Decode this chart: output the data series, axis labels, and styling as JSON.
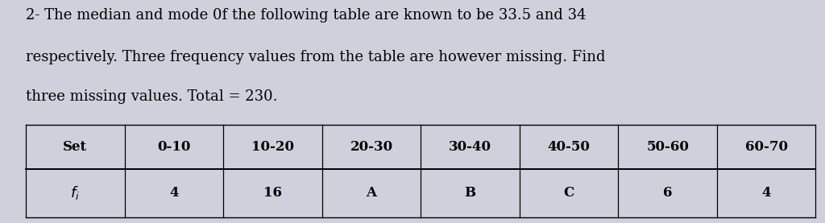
{
  "background_color": "#d0d0dc",
  "text_lines": [
    "2- The median and mode 0f the following table are known to be 33.5 and 34",
    "respectively. Three frequency values from the table are however missing. Find",
    "three missing values. Total = 230."
  ],
  "table_headers": [
    "Set",
    "0-10",
    "10-20",
    "20-30",
    "30-40",
    "40-50",
    "50-60",
    "60-70"
  ],
  "table_row_label": "$f_i$",
  "table_values": [
    "4",
    "16",
    "A",
    "B",
    "C",
    "6",
    "4"
  ],
  "font_size_text": 13,
  "font_size_table": 12
}
